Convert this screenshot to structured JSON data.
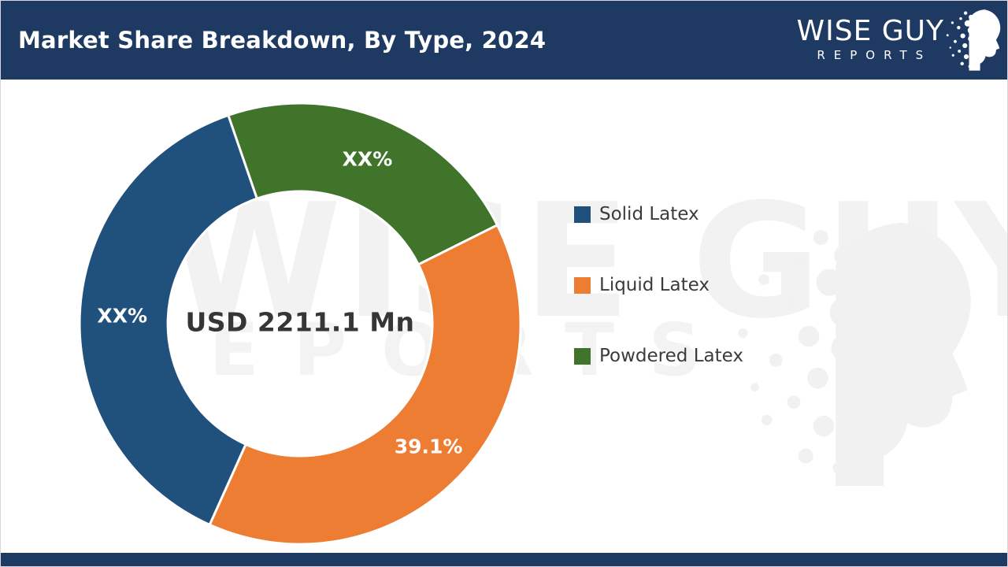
{
  "header": {
    "title": "Market Share Breakdown, By Type, 2024",
    "logo": {
      "line1": "WISE GUY",
      "line2": "REPORTS"
    }
  },
  "chart_data": {
    "type": "pie",
    "subtype": "donut",
    "title": "Market Share Breakdown, By Type, 2024",
    "center_label": "USD 2211.1 Mn",
    "start_angle_deg": 341,
    "legend_position": "right",
    "segments": [
      {
        "label": "Powdered Latex",
        "value_pct": "XX%",
        "fraction": 0.229,
        "color": "#41742b"
      },
      {
        "label": "Liquid Latex",
        "value_pct": "39.1%",
        "fraction": 0.391,
        "color": "#ec7d33"
      },
      {
        "label": "Solid Latex",
        "value_pct": "XX%",
        "fraction": 0.38,
        "color": "#20517c"
      }
    ]
  },
  "legend": {
    "items": [
      {
        "label": "Solid Latex",
        "color": "#20517c"
      },
      {
        "label": "Liquid Latex",
        "color": "#ec7d33"
      },
      {
        "label": "Powdered Latex",
        "color": "#41742b"
      }
    ]
  },
  "watermark": {
    "line1": "WISE GUY",
    "line2": "REPORTS"
  },
  "colors": {
    "header_bg": "#1e3a63",
    "footer_bg": "#1e3a63",
    "center_text": "#363636",
    "legend_text": "#3b3b3b",
    "separator": "#ffffff"
  }
}
